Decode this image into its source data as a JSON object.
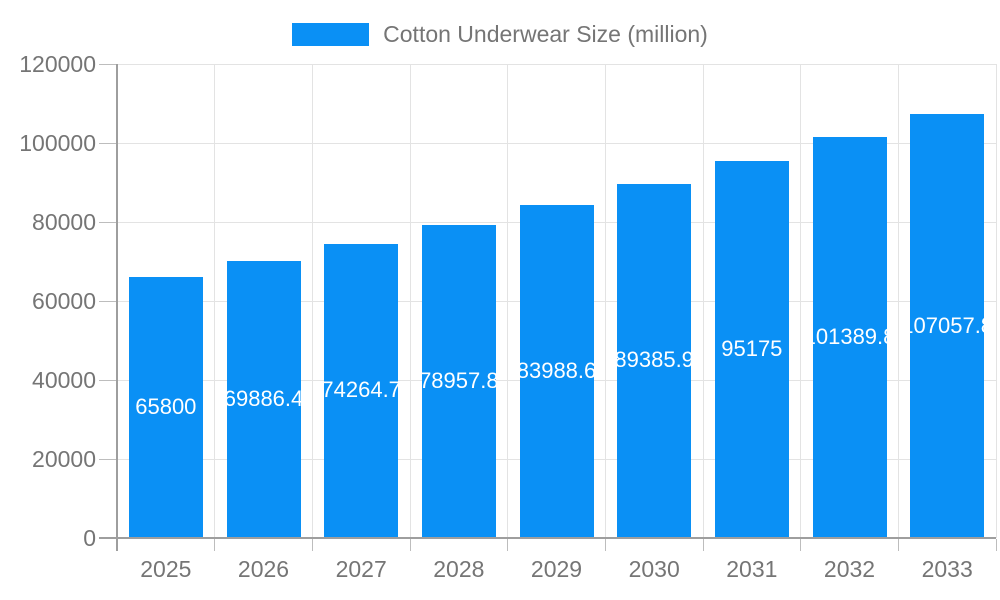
{
  "legend": {
    "label": "Cotton Underwear Size (million)",
    "swatch_color": "#0a90f5"
  },
  "chart_data": {
    "type": "bar",
    "title": "Cotton Underwear Size (million)",
    "categories": [
      "2025",
      "2026",
      "2027",
      "2028",
      "2029",
      "2030",
      "2031",
      "2032",
      "2033"
    ],
    "series": [
      {
        "name": "Cotton Underwear Size (million)",
        "values": [
          65800,
          69886.4,
          74264.7,
          78957.8,
          83988.6,
          89385.9,
          95175,
          101389.8,
          107057.8
        ],
        "bar_labels": [
          "65800",
          "69886.4",
          "74264.7",
          "78957.8",
          "83988.6",
          "89385.9",
          "95175",
          "101389.8",
          "107057.8"
        ]
      }
    ],
    "xlabel": "",
    "ylabel": "",
    "ylim": [
      0,
      120000
    ],
    "y_ticks": [
      0,
      20000,
      40000,
      60000,
      80000,
      100000,
      120000
    ],
    "grid": true,
    "legend_position": "top-center",
    "colors": {
      "bar": "#0a90f5",
      "bar_label_text": "#ffffff",
      "axis_text": "#757575",
      "gridline": "#e3e3e3",
      "axis_line": "#9e9e9e",
      "tick": "#bdbdbd",
      "background": "#ffffff"
    }
  }
}
